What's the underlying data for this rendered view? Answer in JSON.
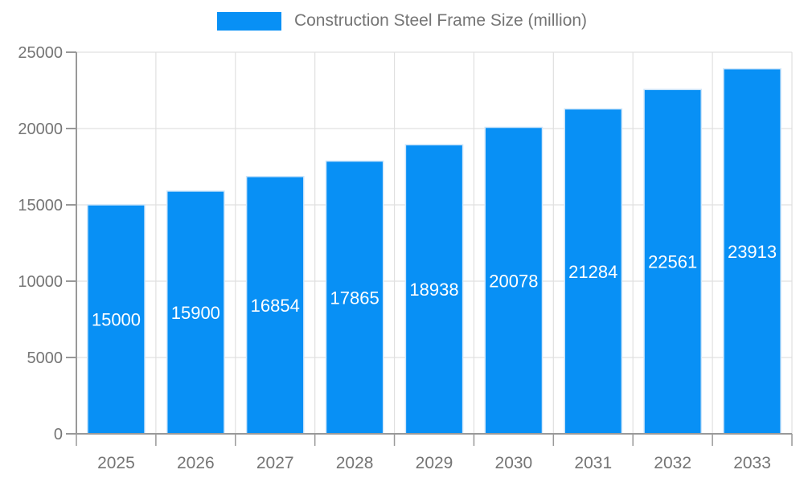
{
  "chart_data": {
    "type": "bar",
    "title": "Construction Steel Frame Size (million)",
    "categories": [
      "2025",
      "2026",
      "2027",
      "2028",
      "2029",
      "2030",
      "2031",
      "2032",
      "2033"
    ],
    "values": [
      15000,
      15900,
      16854,
      17865,
      18938,
      20078,
      21284,
      22561,
      23913
    ],
    "bar_labels": [
      "15000",
      "15900",
      "16854",
      "17865",
      "18938",
      "20078",
      "21284",
      "22561",
      "23913"
    ],
    "xlabel": "",
    "ylabel": "",
    "ylim": [
      0,
      25000
    ],
    "y_ticks": [
      0,
      5000,
      10000,
      15000,
      20000,
      25000
    ],
    "y_tick_labels": [
      "0",
      "5000",
      "10000",
      "15000",
      "20000",
      "25000"
    ],
    "grid": "both",
    "legend_position": "top",
    "colors": {
      "bar": "#0890f5",
      "bar_edge": "#cfe6fa",
      "bar_label": "#ffffff",
      "axis": "#999999",
      "grid": "#e0e0e0",
      "tick_text": "#757575",
      "legend_text": "#757575"
    }
  }
}
